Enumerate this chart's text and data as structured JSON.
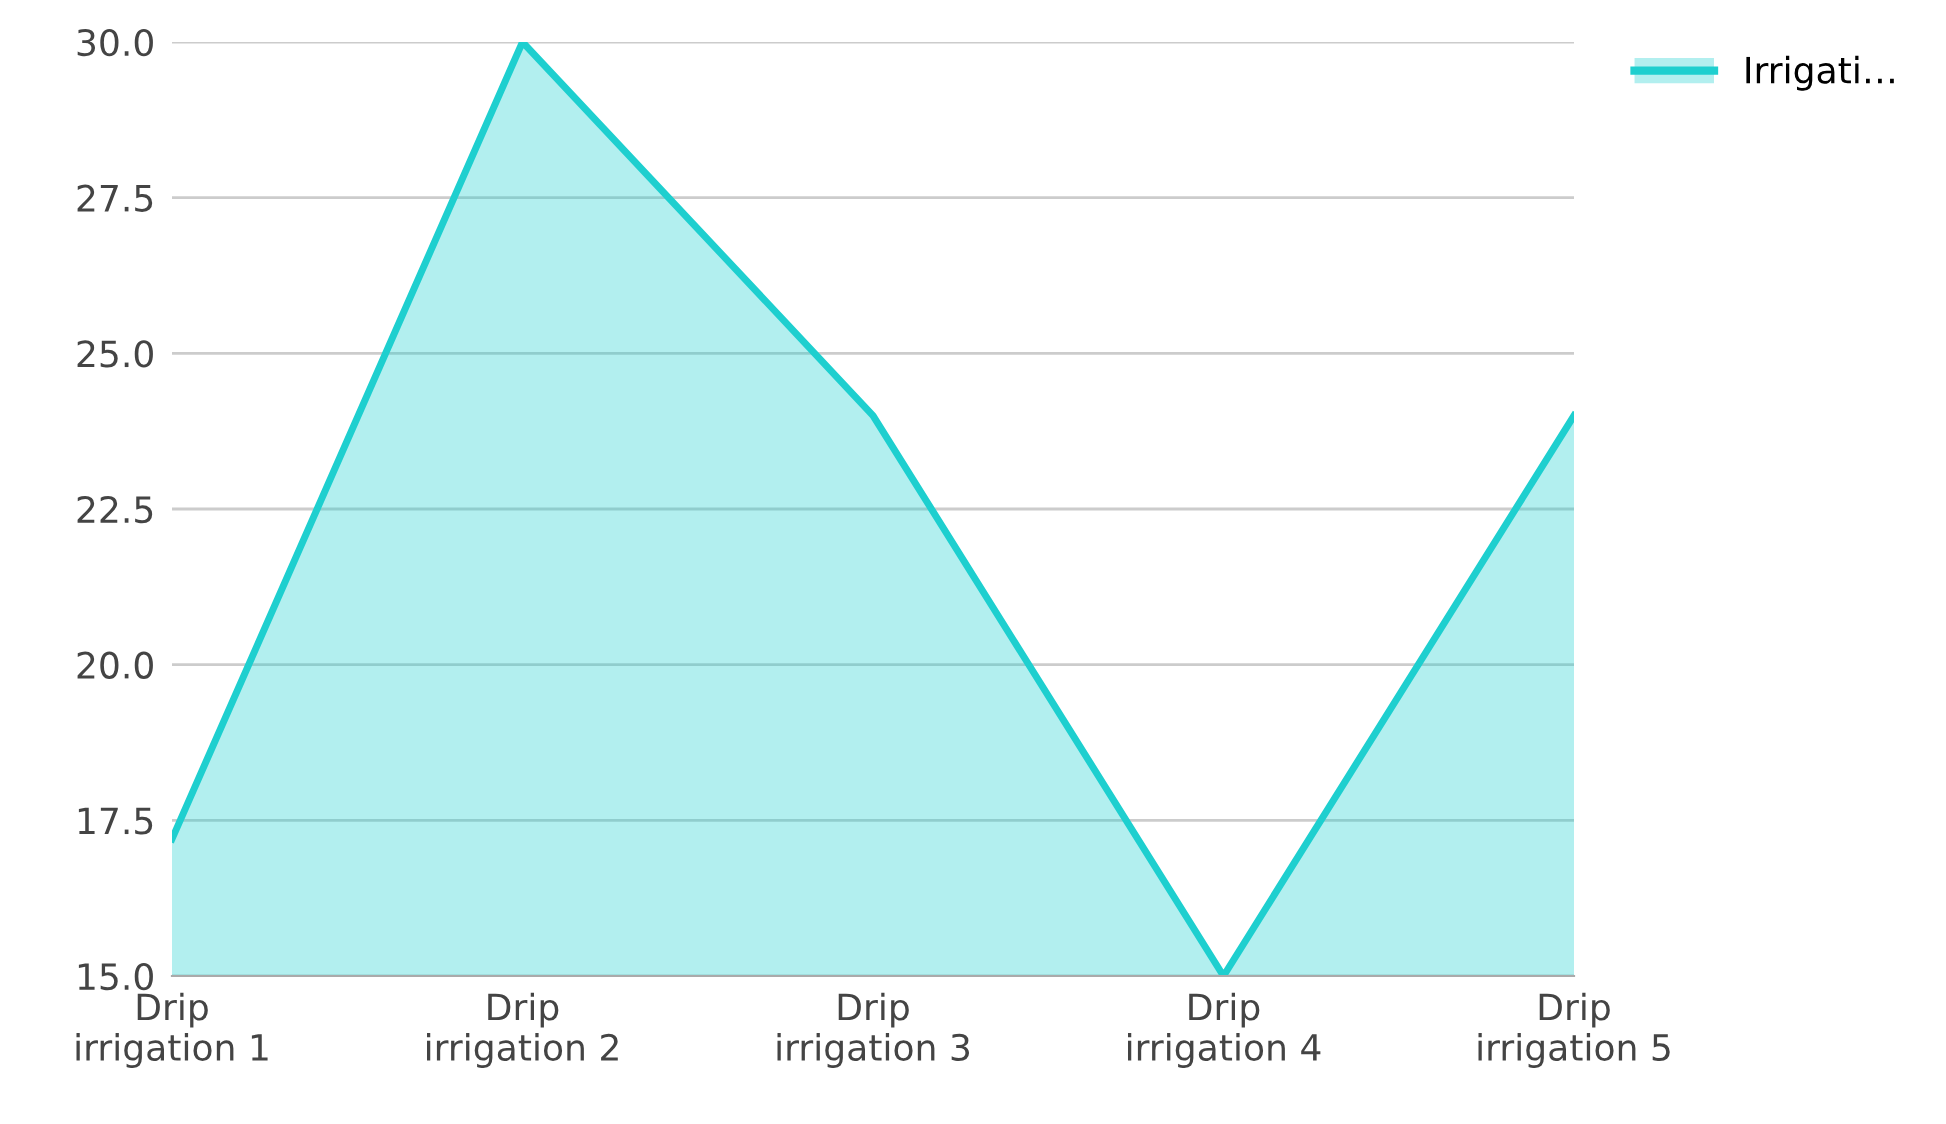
{
  "chart_data": {
    "type": "area",
    "categories": [
      "Drip\nirrigation 1",
      "Drip\nirrigation 2",
      "Drip\nirrigation 3",
      "Drip\nirrigation 4",
      "Drip\nirrigation 5"
    ],
    "series": [
      {
        "name": "Irrigati…",
        "color": "#1ecfcf",
        "values": [
          17.2,
          30.0,
          24.0,
          15.0,
          24.0
        ]
      }
    ],
    "ylim": [
      15,
      30
    ],
    "yticks": [
      {
        "value": 15,
        "label": "15.0"
      },
      {
        "value": 17.5,
        "label": "17.5"
      },
      {
        "value": 20,
        "label": "20.0"
      },
      {
        "value": 22.5,
        "label": "22.5"
      },
      {
        "value": 25,
        "label": "25.0"
      },
      {
        "value": 27.5,
        "label": "27.5"
      },
      {
        "value": 30,
        "label": "30.0"
      }
    ],
    "grid": "y",
    "legend": "top right"
  }
}
